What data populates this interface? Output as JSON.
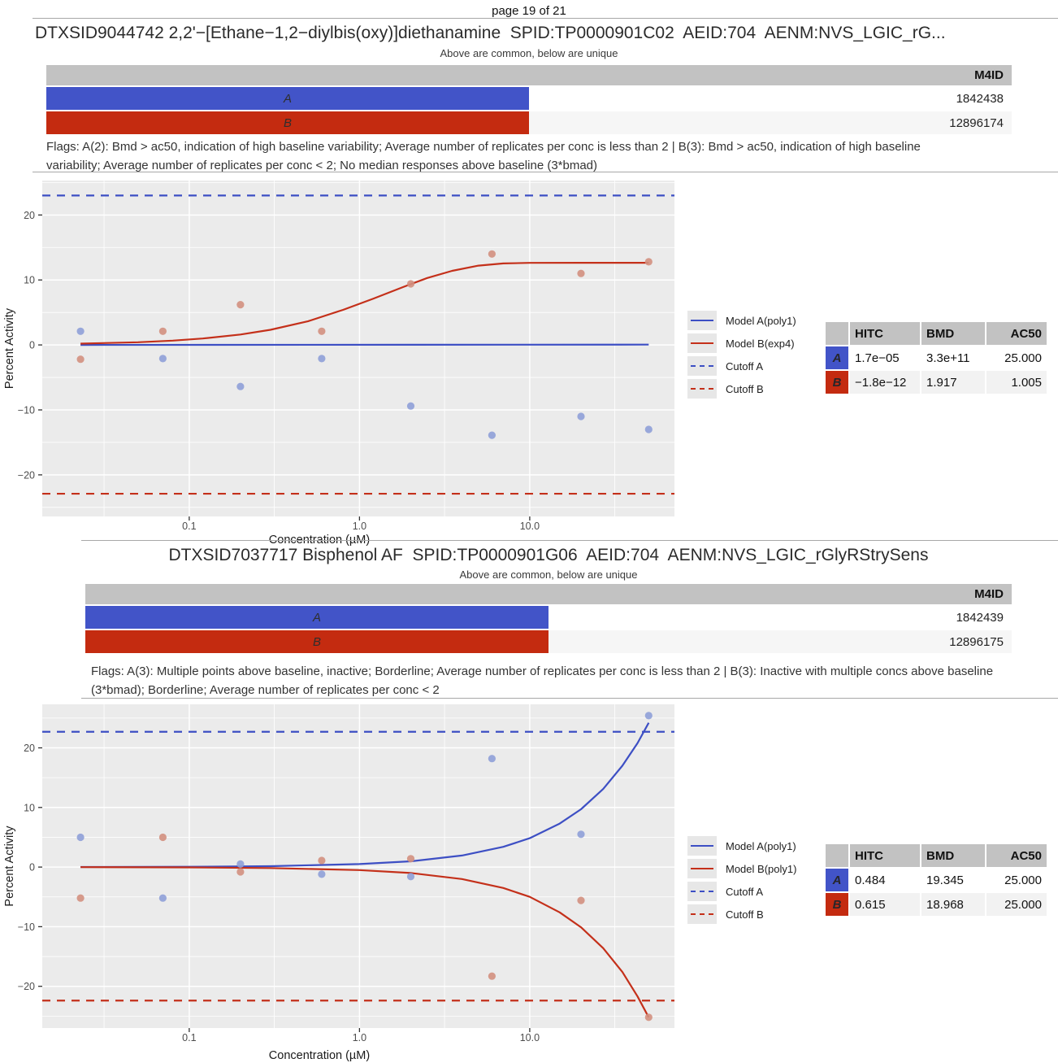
{
  "page": {
    "header": "page 19 of 21"
  },
  "colors": {
    "model_blue": "#3d4fc4",
    "model_red": "#c4301a",
    "point_blue": "#8fa0d8",
    "point_red": "#d3907f",
    "bar_blue": "#4254c8",
    "bar_red": "#c42b10",
    "panel_bg": "#ebebeb",
    "grid": "#ffffff",
    "table_header_bg": "#c2c2c2",
    "axis_text": "#4d4d4d"
  },
  "panels": [
    {
      "title": "DTXSID9044742 2,2'−[Ethane−1,2−diylbis(oxy)]diethanamine  SPID:TP0000901C02  AEID:704  AENM:NVS_LGIC_rG...",
      "subtitle": "Above are common, below are unique",
      "id_table": {
        "header": "M4ID",
        "rows": [
          {
            "label": "A",
            "value": "1842438"
          },
          {
            "label": "B",
            "value": "12896174"
          }
        ]
      },
      "flags": "Flags: A(2): Bmd > ac50, indication of high baseline variability; Average number of replicates per conc is less than 2 | B(3): Bmd > ac50, indication of high baseline variability; Average number of replicates per conc < 2; No median responses above baseline (3*bmad)",
      "legend": [
        {
          "label": "Model A(poly1)",
          "style": "solid",
          "color": "blue"
        },
        {
          "label": "Model B(exp4)",
          "style": "solid",
          "color": "red"
        },
        {
          "label": "Cutoff A",
          "style": "dashed",
          "color": "blue"
        },
        {
          "label": "Cutoff B",
          "style": "dashed",
          "color": "red"
        }
      ],
      "stats": {
        "headers": [
          "HITC",
          "BMD",
          "AC50"
        ],
        "rows": [
          {
            "label": "A",
            "values": [
              "1.7e−05",
              "3.3e+11",
              "25.000"
            ]
          },
          {
            "label": "B",
            "values": [
              "−1.8e−12",
              "1.917",
              "1.005"
            ]
          }
        ]
      }
    },
    {
      "title": "DTXSID7037717 Bisphenol AF  SPID:TP0000901G06  AEID:704  AENM:NVS_LGIC_rGlyRStrySens",
      "subtitle": "Above are common, below are unique",
      "id_table": {
        "header": "M4ID",
        "rows": [
          {
            "label": "A",
            "value": "1842439"
          },
          {
            "label": "B",
            "value": "12896175"
          }
        ]
      },
      "flags": "Flags: A(3): Multiple points above baseline, inactive; Borderline; Average number of replicates per conc is less than 2 | B(3): Inactive with multiple concs above baseline (3*bmad); Borderline; Average number of replicates per conc < 2",
      "legend": [
        {
          "label": "Model A(poly1)",
          "style": "solid",
          "color": "blue"
        },
        {
          "label": "Model B(poly1)",
          "style": "solid",
          "color": "red"
        },
        {
          "label": "Cutoff A",
          "style": "dashed",
          "color": "blue"
        },
        {
          "label": "Cutoff B",
          "style": "dashed",
          "color": "red"
        }
      ],
      "stats": {
        "headers": [
          "HITC",
          "BMD",
          "AC50"
        ],
        "rows": [
          {
            "label": "A",
            "values": [
              "0.484",
              "19.345",
              "25.000"
            ]
          },
          {
            "label": "B",
            "values": [
              "0.615",
              "18.968",
              "25.000"
            ]
          }
        ]
      }
    }
  ],
  "chart_data": [
    {
      "type": "line",
      "title": "",
      "xlabel": "Concentration (µM)",
      "ylabel": "Percent Activity",
      "xscale": "log10",
      "xlim": [
        0.0137,
        70.8
      ],
      "ylim": [
        -26.4,
        25.3
      ],
      "xticks": [
        {
          "v": 0.1,
          "label": "0.1"
        },
        {
          "v": 1,
          "label": "1.0"
        },
        {
          "v": 10,
          "label": "10.0"
        }
      ],
      "xminor": [
        0.0316,
        0.316,
        3.16,
        31.6
      ],
      "yticks": [
        {
          "v": -20,
          "label": "−20"
        },
        {
          "v": -10,
          "label": "−10"
        },
        {
          "v": 0,
          "label": "0"
        },
        {
          "v": 10,
          "label": "10"
        },
        {
          "v": 20,
          "label": "20"
        }
      ],
      "yminor": [
        -25,
        -15,
        -5,
        5,
        15,
        25
      ],
      "cutoffs": {
        "A": 23.0,
        "B": -22.9
      },
      "curves": [
        {
          "name": "Model A(poly1)",
          "color": "blue",
          "points": [
            [
              0.023,
              0.0
            ],
            [
              50,
              0.05
            ]
          ]
        },
        {
          "name": "Model B(exp4)",
          "color": "red",
          "points": [
            [
              0.023,
              0.2
            ],
            [
              0.05,
              0.42
            ],
            [
              0.08,
              0.67
            ],
            [
              0.12,
              0.99
            ],
            [
              0.2,
              1.6
            ],
            [
              0.3,
              2.33
            ],
            [
              0.5,
              3.66
            ],
            [
              0.8,
              5.4
            ],
            [
              1.2,
              7.1
            ],
            [
              1.8,
              8.9
            ],
            [
              2.5,
              10.3
            ],
            [
              3.5,
              11.4
            ],
            [
              5,
              12.2
            ],
            [
              7,
              12.55
            ],
            [
              10,
              12.63
            ],
            [
              20,
              12.65
            ],
            [
              50,
              12.65
            ]
          ]
        }
      ],
      "scatter": [
        {
          "name": "A responses",
          "color": "blue",
          "points": [
            [
              0.023,
              2.1
            ],
            [
              0.07,
              -2.1
            ],
            [
              0.2,
              -6.4
            ],
            [
              0.6,
              -2.1
            ],
            [
              2,
              -9.4
            ],
            [
              6,
              -13.9
            ],
            [
              20,
              -11.0
            ],
            [
              50,
              -13.0
            ]
          ]
        },
        {
          "name": "B responses",
          "color": "red",
          "points": [
            [
              0.023,
              -2.2
            ],
            [
              0.07,
              2.1
            ],
            [
              0.2,
              6.2
            ],
            [
              0.6,
              2.1
            ],
            [
              2,
              9.4
            ],
            [
              6,
              14.0
            ],
            [
              20,
              11.0
            ],
            [
              50,
              12.8
            ]
          ]
        }
      ]
    },
    {
      "type": "line",
      "title": "",
      "xlabel": "Concentration (µM)",
      "ylabel": "Percent Activity",
      "xscale": "log10",
      "xlim": [
        0.0137,
        70.8
      ],
      "ylim": [
        -27.0,
        27.3
      ],
      "xticks": [
        {
          "v": 0.1,
          "label": "0.1"
        },
        {
          "v": 1,
          "label": "1.0"
        },
        {
          "v": 10,
          "label": "10.0"
        }
      ],
      "xminor": [
        0.0316,
        0.316,
        3.16,
        31.6
      ],
      "yticks": [
        {
          "v": -20,
          "label": "−20"
        },
        {
          "v": -10,
          "label": "−10"
        },
        {
          "v": 0,
          "label": "0"
        },
        {
          "v": 10,
          "label": "10"
        },
        {
          "v": 20,
          "label": "20"
        }
      ],
      "yminor": [
        -25,
        -15,
        -5,
        5,
        15,
        25
      ],
      "cutoffs": {
        "A": 22.7,
        "B": -22.4
      },
      "curves": [
        {
          "name": "Model A(poly1)",
          "color": "blue",
          "points": [
            [
              0.023,
              0.01
            ],
            [
              0.1,
              0.05
            ],
            [
              0.3,
              0.15
            ],
            [
              1,
              0.5
            ],
            [
              2,
              0.97
            ],
            [
              4,
              1.94
            ],
            [
              7,
              3.4
            ],
            [
              10,
              4.85
            ],
            [
              15,
              7.3
            ],
            [
              20,
              9.7
            ],
            [
              27,
              13.1
            ],
            [
              35,
              17.0
            ],
            [
              43,
              20.8
            ],
            [
              50,
              24.2
            ]
          ]
        },
        {
          "name": "Model B(poly1)",
          "color": "red",
          "points": [
            [
              0.023,
              -0.01
            ],
            [
              0.1,
              -0.05
            ],
            [
              0.3,
              -0.16
            ],
            [
              1,
              -0.51
            ],
            [
              2,
              -1.0
            ],
            [
              4,
              -2.0
            ],
            [
              7,
              -3.5
            ],
            [
              10,
              -5.0
            ],
            [
              15,
              -7.6
            ],
            [
              20,
              -10.1
            ],
            [
              27,
              -13.6
            ],
            [
              35,
              -17.6
            ],
            [
              43,
              -21.7
            ],
            [
              50,
              -25.2
            ]
          ]
        }
      ],
      "scatter": [
        {
          "name": "A responses",
          "color": "blue",
          "points": [
            [
              0.023,
              5.0
            ],
            [
              0.07,
              -5.2
            ],
            [
              0.2,
              0.5
            ],
            [
              0.6,
              -1.2
            ],
            [
              2,
              -1.6
            ],
            [
              6,
              18.2
            ],
            [
              20,
              5.5
            ],
            [
              50,
              25.4
            ]
          ]
        },
        {
          "name": "B responses",
          "color": "red",
          "points": [
            [
              0.023,
              -5.2
            ],
            [
              0.07,
              5.0
            ],
            [
              0.2,
              -0.8
            ],
            [
              0.6,
              1.1
            ],
            [
              2,
              1.4
            ],
            [
              6,
              -18.3
            ],
            [
              20,
              -5.6
            ],
            [
              50,
              -25.2
            ]
          ]
        }
      ]
    }
  ]
}
